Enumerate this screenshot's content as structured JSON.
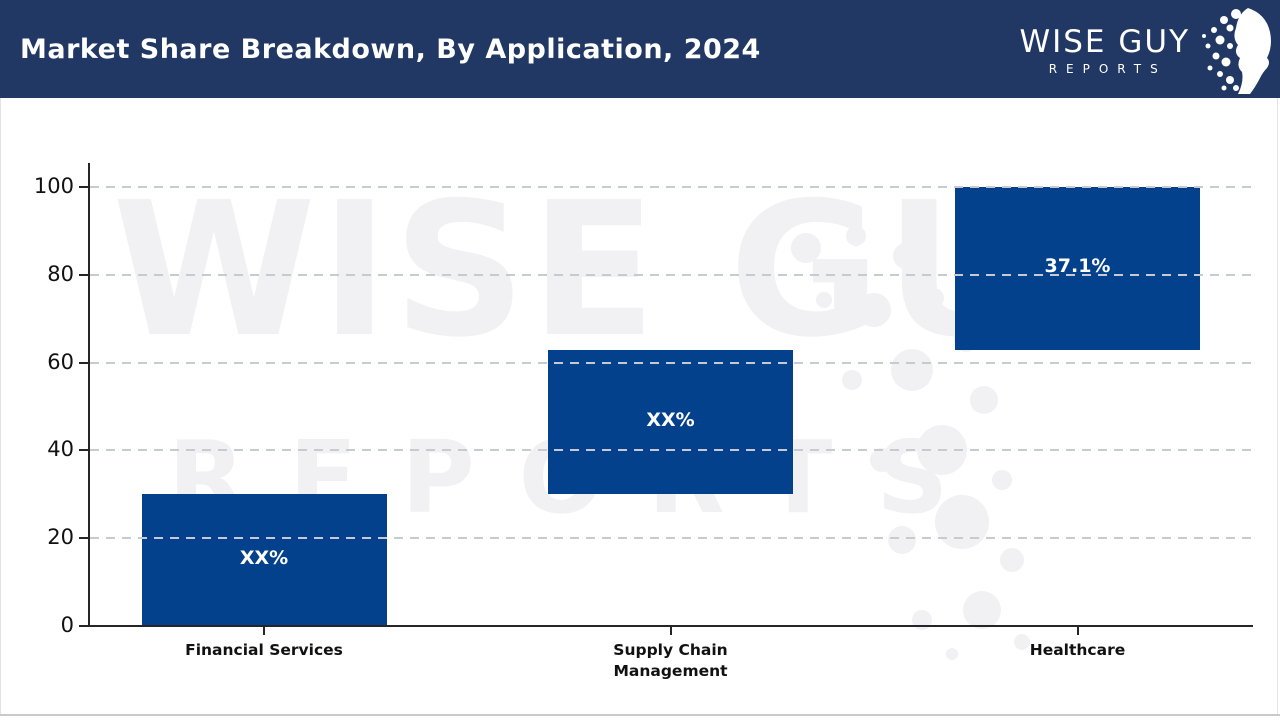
{
  "header": {
    "title": "Market Share Breakdown, By Application, 2024",
    "logo": {
      "line1": "WISE GUY",
      "line2": "REPORTS"
    }
  },
  "watermark": {
    "line1": "WISE GUY",
    "line2": "REPORTS"
  },
  "chart_data": {
    "type": "bar",
    "subtype": "floating-waterfall",
    "title": "Market Share Breakdown, By Application, 2024",
    "categories": [
      "Financial Services",
      "Supply Chain Management",
      "Healthcare"
    ],
    "segments": [
      {
        "category": "Financial Services",
        "start": 0,
        "end": 30,
        "value_label": "XX%"
      },
      {
        "category": "Supply Chain Management",
        "start": 30,
        "end": 62.9,
        "value_label": "XX%"
      },
      {
        "category": "Healthcare",
        "start": 62.9,
        "end": 100,
        "value": 37.1,
        "value_label": "37.1%"
      }
    ],
    "ylim": [
      0,
      100
    ],
    "yticks": [
      0,
      20,
      40,
      60,
      80,
      100
    ],
    "grid": {
      "axis": "y",
      "style": "dashed",
      "drawn_over_bars": true
    },
    "legend": null,
    "colors": {
      "bar": "#04418d",
      "bar_label": "#ffffff",
      "header_bg": "#213764",
      "gridline": "#c7cad1",
      "axis": "#262626",
      "tick_text": "#111111",
      "watermark": "#f1f1f4"
    }
  }
}
